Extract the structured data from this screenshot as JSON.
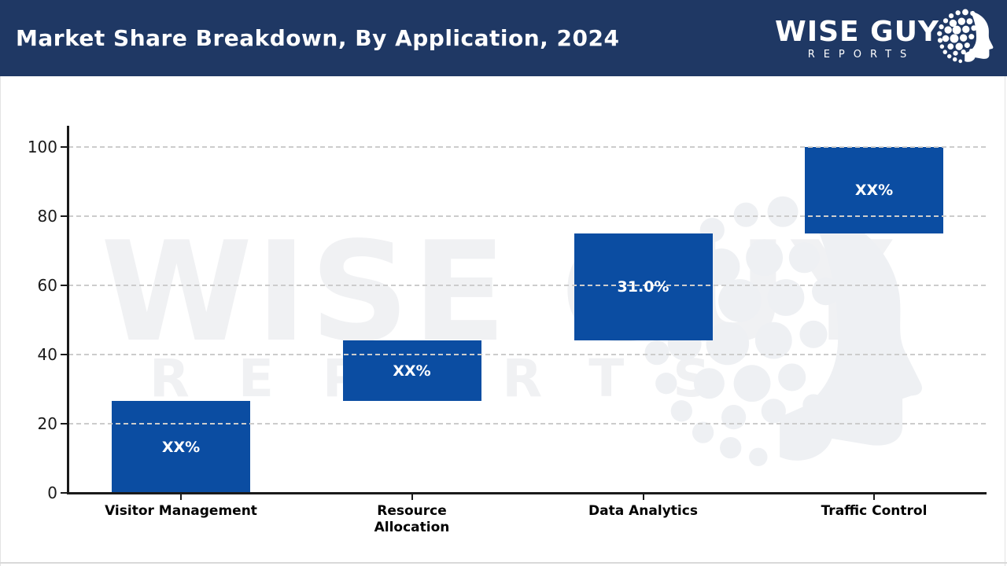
{
  "header": {
    "title": "Market Share Breakdown, By Application, 2024",
    "logo": {
      "name": "WISE GUY",
      "subtitle": "REPORTS"
    }
  },
  "watermark": {
    "line1": "WISE GUY",
    "line2": "REPORTS"
  },
  "chart_data": {
    "type": "bar",
    "subtype": "waterfall",
    "title": "Market Share Breakdown, By Application, 2024",
    "categories": [
      "Visitor Management",
      "Resource Allocation",
      "Data Analytics",
      "Traffic Control"
    ],
    "tick_label_lines": [
      [
        "Visitor Management"
      ],
      [
        "Resource",
        "Allocation"
      ],
      [
        "Data Analytics"
      ],
      [
        "Traffic Control"
      ]
    ],
    "segments": [
      {
        "category": "Visitor Management",
        "start": 0,
        "end": 26.5,
        "label": "XX%"
      },
      {
        "category": "Resource Allocation",
        "start": 26.5,
        "end": 44,
        "label": "XX%"
      },
      {
        "category": "Data Analytics",
        "start": 44,
        "end": 75,
        "label": "31.0%",
        "value": 31.0
      },
      {
        "category": "Traffic Control",
        "start": 75,
        "end": 100,
        "label": "XX%"
      }
    ],
    "yticks": [
      0,
      20,
      40,
      60,
      80,
      100
    ],
    "ylim": [
      0,
      106
    ],
    "xlabel": "",
    "ylabel": "",
    "legend": "none",
    "grid": {
      "axis": "y",
      "style": "dashed",
      "color": "#cccccc"
    },
    "bar_color": "#0b4da2",
    "bar_label_color": "#ffffff"
  },
  "colors": {
    "header_bg": "#1f3864",
    "bar": "#0b4da2",
    "grid": "#cccccc",
    "axis": "#1a1a1a",
    "watermark": "#f0f1f3",
    "background": "#ffffff"
  }
}
